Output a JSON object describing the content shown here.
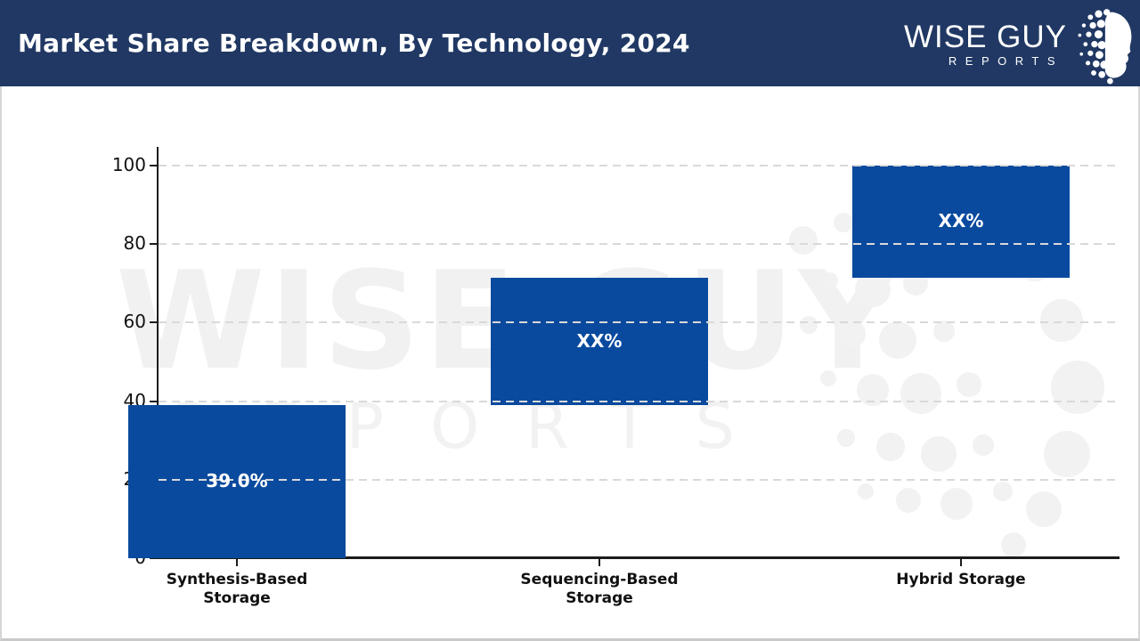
{
  "page": {
    "bg": "#ffffff",
    "border_color": "#c9c9c9"
  },
  "header": {
    "bg": "#203863",
    "title": "Market Share Breakdown, By Technology, 2024",
    "logo": {
      "name": "WISE GUY",
      "sub": "REPORTS"
    }
  },
  "watermark": {
    "line1": "WISE GUY",
    "line2": "REPORTS"
  },
  "chart_data": {
    "type": "bar",
    "subtype": "waterfall-stacked-market-share",
    "title": "Market Share Breakdown, By Technology, 2024",
    "categories": [
      "Synthesis-Based\nStorage",
      "Sequencing-Based\nStorage",
      "Hybrid Storage"
    ],
    "segments": [
      {
        "category": "Synthesis-Based Storage",
        "start": 0,
        "end": 39,
        "value": 39.0,
        "value_label": "39.0%"
      },
      {
        "category": "Sequencing-Based Storage",
        "start": 39,
        "end": 71.4,
        "value": 32.4,
        "value_label": "XX%"
      },
      {
        "category": "Hybrid Storage",
        "start": 71.4,
        "end": 100,
        "value": 28.6,
        "value_label": "XX%"
      }
    ],
    "ylim": [
      0,
      100
    ],
    "yticks": [
      0,
      20,
      40,
      60,
      80,
      100
    ],
    "xlabel": "",
    "ylabel": "",
    "grid": "horizontal-dashed",
    "legend": "none",
    "bar_color": "#0a4a9e",
    "bar_label_color": "#ffffff",
    "axis_color": "#1c1c1c",
    "grid_color": "#d9d9d9"
  }
}
